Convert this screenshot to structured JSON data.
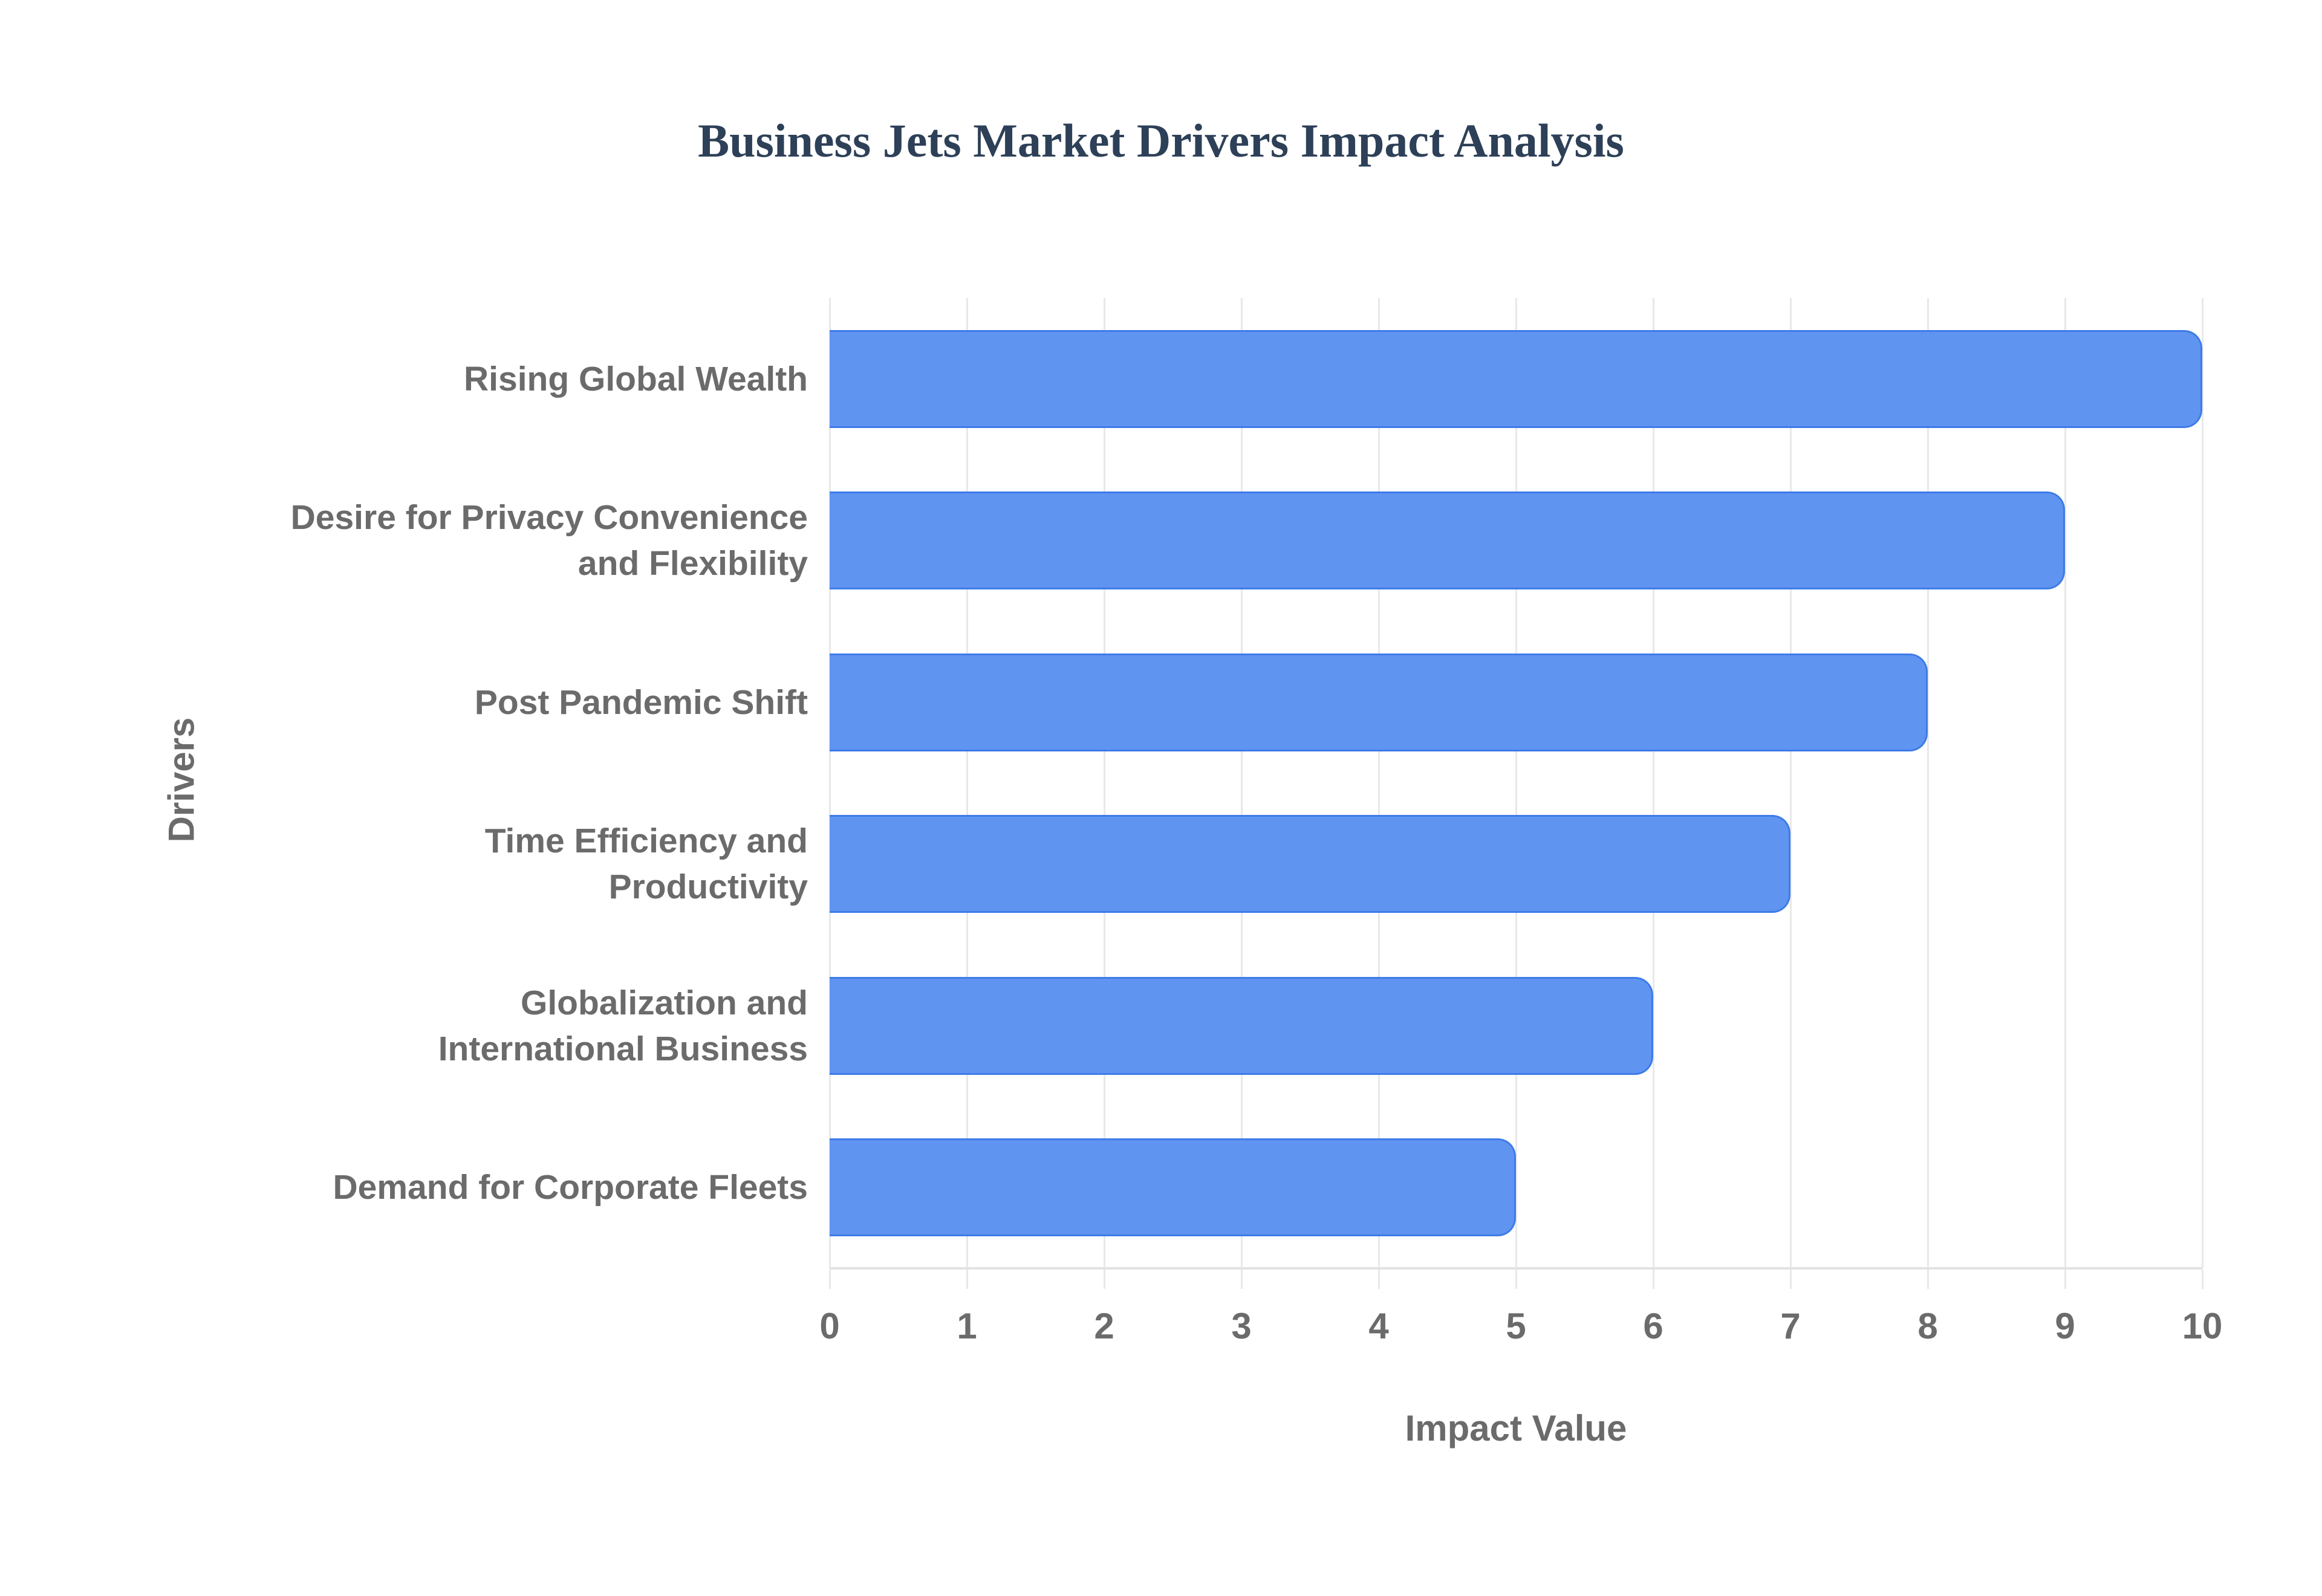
{
  "title": {
    "text": "Business Jets Market Drivers Impact Analysis",
    "color": "#2d4058"
  },
  "axes": {
    "x_title": "Impact Value",
    "y_title": "Drivers",
    "x_tick_labels": [
      "0",
      "1",
      "2",
      "3",
      "4",
      "5",
      "6",
      "7",
      "8",
      "9",
      "10"
    ]
  },
  "colors": {
    "bar_fill": "#6094f1",
    "bar_stroke": "#3d7be8",
    "grid_line": "#e8e8e8",
    "axis_line": "#e2e2e2",
    "label_text": "#6b6b6b",
    "title_text": "#2d4058"
  },
  "chart_data": {
    "type": "bar",
    "orientation": "horizontal",
    "title": "Business Jets Market Drivers Impact Analysis",
    "categories": [
      "Rising Global Wealth",
      "Desire for Privacy Convenience and Flexibility",
      "Post Pandemic Shift",
      "Time Efficiency and Productivity",
      "Globalization and International Business",
      "Demand for Corporate Fleets"
    ],
    "category_display_lines": [
      [
        "Rising Global Wealth"
      ],
      [
        "Desire for Privacy Convenience",
        "and Flexibility"
      ],
      [
        "Post Pandemic Shift"
      ],
      [
        "Time Efficiency and",
        "Productivity"
      ],
      [
        "Globalization and",
        "International Business"
      ],
      [
        "Demand for Corporate Fleets"
      ]
    ],
    "values": [
      10,
      9,
      8,
      7,
      6,
      5
    ],
    "xlabel": "Impact Value",
    "ylabel": "Drivers",
    "xlim": [
      0,
      10
    ],
    "xticks": [
      0,
      1,
      2,
      3,
      4,
      5,
      6,
      7,
      8,
      9,
      10
    ],
    "grid": true,
    "legend_position": "none",
    "bar_color": "#6094f1"
  }
}
